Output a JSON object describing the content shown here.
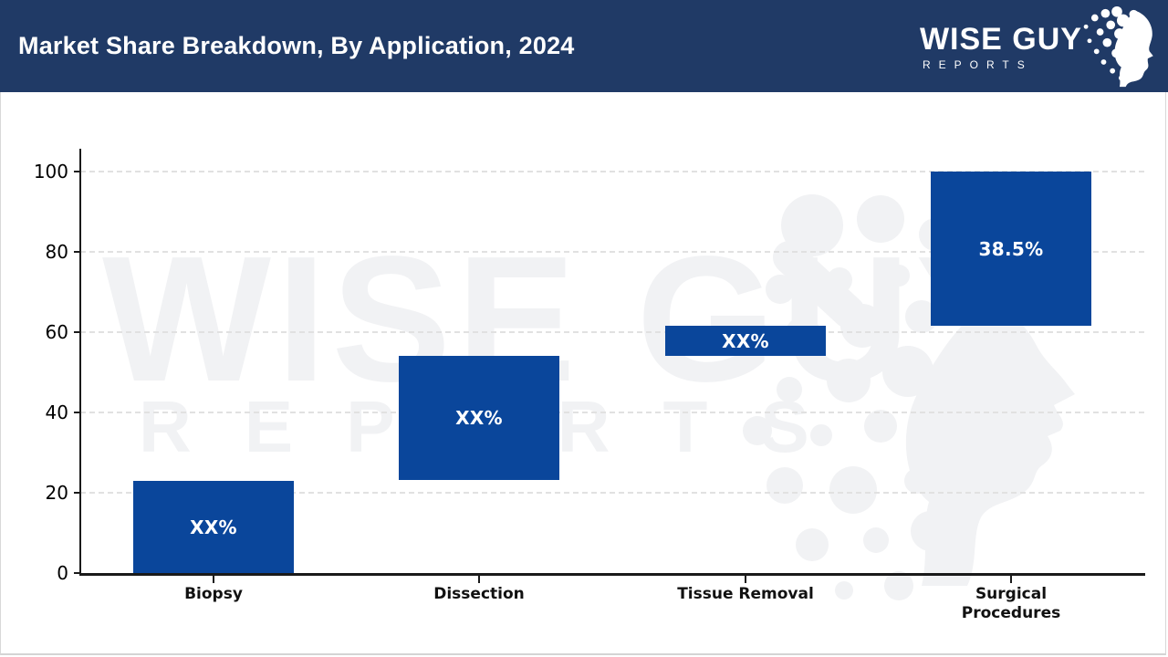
{
  "header": {
    "title": "Market Share Breakdown, By Application, 2024",
    "logo": {
      "line1": "WISE GUY",
      "line2": "REPORTS"
    }
  },
  "watermark": {
    "line1": "WISE GUY",
    "line2": "REPORTS"
  },
  "chart_data": {
    "type": "bar",
    "subtype": "floating-waterfall",
    "title": "Market Share Breakdown, By Application, 2024",
    "categories": [
      "Biopsy",
      "Dissection",
      "Tissue Removal",
      "Surgical Procedures"
    ],
    "segments": [
      {
        "category": "Biopsy",
        "start": 0,
        "end": 23,
        "label": "XX%"
      },
      {
        "category": "Dissection",
        "start": 23,
        "end": 54,
        "label": "XX%"
      },
      {
        "category": "Tissue Removal",
        "start": 54,
        "end": 61.5,
        "label": "XX%"
      },
      {
        "category": "Surgical Procedures",
        "start": 61.5,
        "end": 100,
        "label": "38.5%"
      }
    ],
    "ylim": [
      0,
      100
    ],
    "yticks": [
      0,
      20,
      40,
      60,
      80,
      100
    ],
    "xlabel": "",
    "ylabel": "",
    "grid": "horizontal-dashed",
    "legend": "none",
    "bar_color": "#0a469b",
    "bar_label_color": "#ffffff"
  },
  "colors": {
    "header_bg": "#203a66",
    "bar": "#0a469b",
    "axis": "#1a1a1a",
    "gridline": "#e1e1e1",
    "watermark": "#f1f2f4"
  }
}
